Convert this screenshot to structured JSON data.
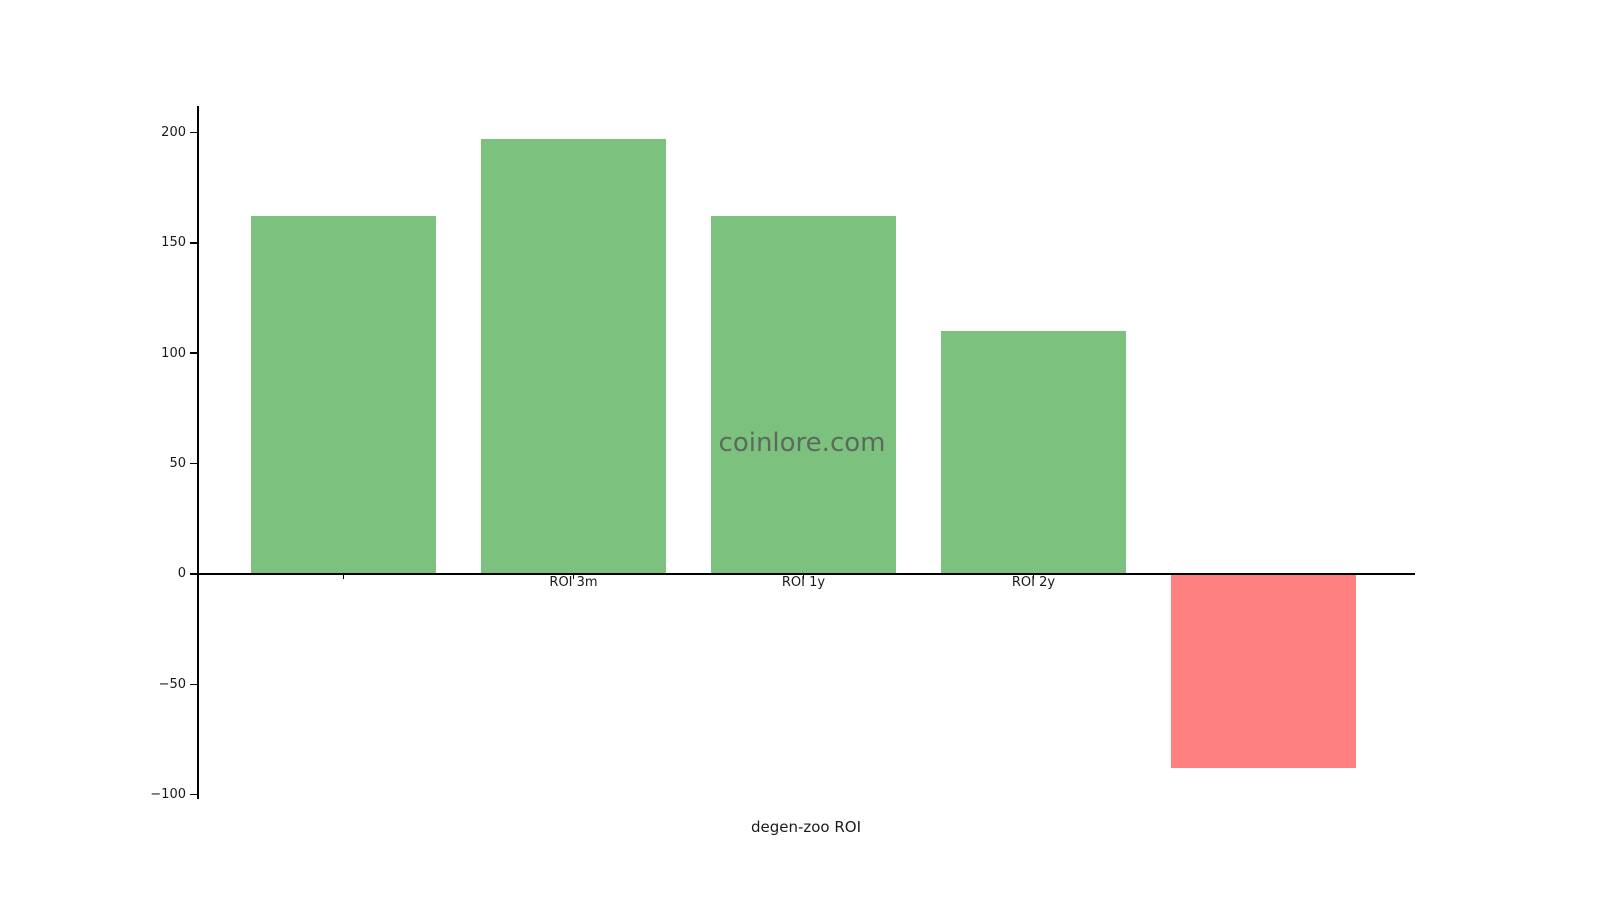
{
  "page": {
    "background": "#ffffff"
  },
  "watermark": {
    "text": "coinlore.com",
    "color": "#555555",
    "opacity": 0.8
  },
  "chart_data": {
    "type": "bar",
    "title": "degen-zoo ROI",
    "xlabel": "degen-zoo ROI",
    "ylabel": "",
    "categories": [
      "",
      "ROI 3m",
      "ROI 1y",
      "ROI 2y",
      ""
    ],
    "values": [
      162,
      197,
      162,
      110,
      -88
    ],
    "yticks": [
      200,
      150,
      100,
      50,
      0,
      -50,
      -100
    ],
    "ylim": [
      -102,
      212
    ],
    "grid": false,
    "legend": "none",
    "positive_color": "#7cc17d",
    "negative_color": "#ff8080",
    "axis_color": "#000000"
  }
}
